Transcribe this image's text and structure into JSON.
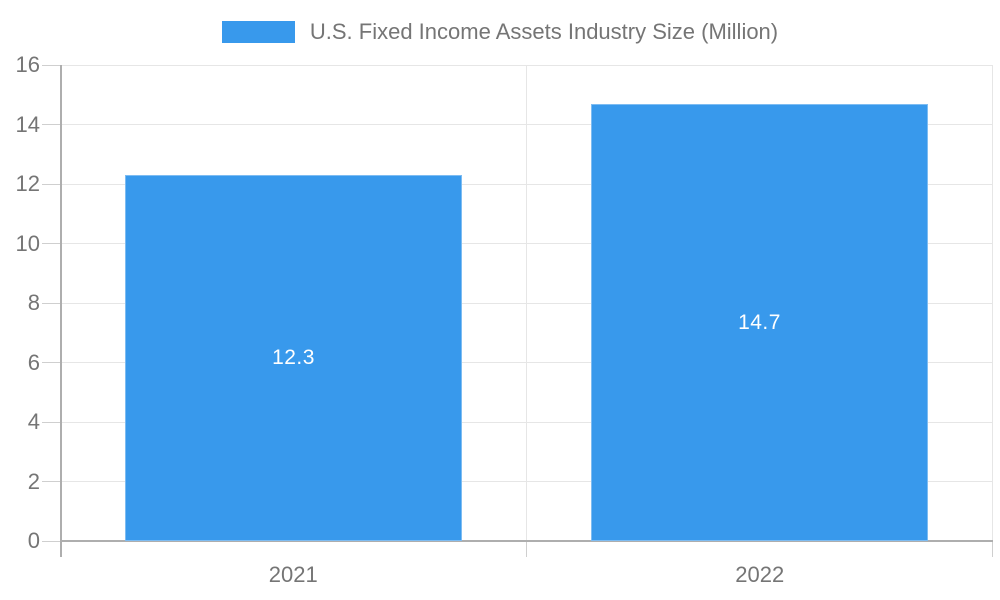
{
  "chart_data": {
    "type": "bar",
    "title": "U.S. Fixed Income Assets Industry Size (Million)",
    "categories": [
      "2021",
      "2022"
    ],
    "values": [
      12.3,
      14.7
    ],
    "value_labels": [
      "12.3",
      "14.7"
    ],
    "xlabel": "",
    "ylabel": "",
    "ylim": [
      0,
      16
    ],
    "yticks": [
      0,
      2,
      4,
      6,
      8,
      10,
      12,
      14,
      16
    ],
    "grid": true,
    "legend_position": "top"
  },
  "legend": {
    "series_label": "U.S. Fixed Income Assets Industry Size (Million)"
  },
  "palette": {
    "bar": "#3899EC",
    "axis": "#aeaeae",
    "tick": "#cfcfcf",
    "grid": "#e6e6e6",
    "text": "#757575",
    "value_text": "#ffffff",
    "background": "#ffffff"
  }
}
